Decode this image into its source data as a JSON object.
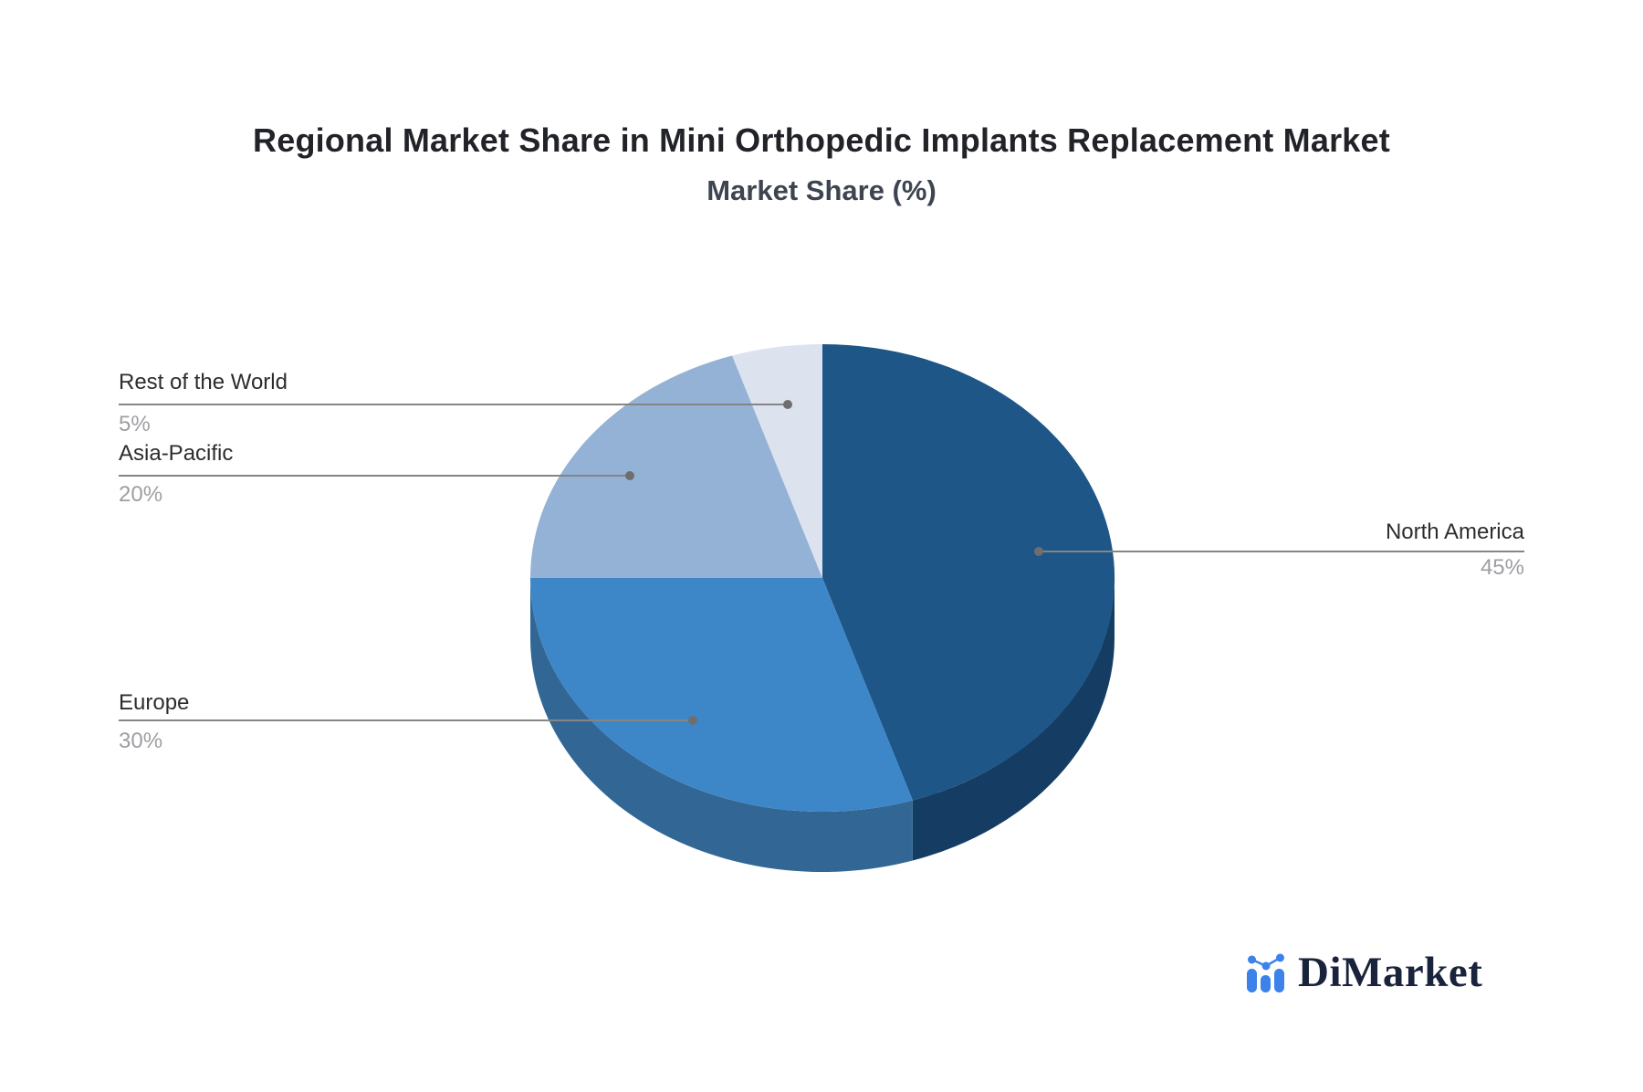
{
  "title": "Regional Market Share in Mini Orthopedic Implants Replacement Market",
  "subtitle": "Market Share (%)",
  "chart_data": {
    "type": "pie",
    "style": "3d",
    "title": "Regional Market Share in Mini Orthopedic Implants Replacement Market",
    "subtitle": "Market Share (%)",
    "unit": "%",
    "start_angle_deg": 0,
    "direction": "clockwise",
    "legend_position": "callout-labels",
    "segments": [
      {
        "label": "North America",
        "value": 45,
        "pct_label": "45%",
        "color": "#1d5687",
        "side_color": "#153d64"
      },
      {
        "label": "Europe",
        "value": 30,
        "pct_label": "30%",
        "color": "#3d87c9",
        "side_color": "#326795"
      },
      {
        "label": "Asia-Pacific",
        "value": 20,
        "pct_label": "20%",
        "color": "#94b2d6",
        "side_color": "#7e9dc0"
      },
      {
        "label": "Rest of the World",
        "value": 5,
        "pct_label": "5%",
        "color": "#dce3ef",
        "side_color": "#b9c4d6"
      }
    ]
  },
  "branding": {
    "logo_text": "DiMarket",
    "logo_icon": "bar-chart-icon",
    "icon_color": "#3b82ea",
    "text_color": "#19233b"
  },
  "colors": {
    "background": "#ffffff",
    "title": "#212329",
    "subtitle": "#3e4551",
    "callout_label": "#2d2d2d",
    "callout_pct": "#9e9ea3",
    "callout_line": "#858585",
    "callout_dot": "#6e6e6e"
  }
}
